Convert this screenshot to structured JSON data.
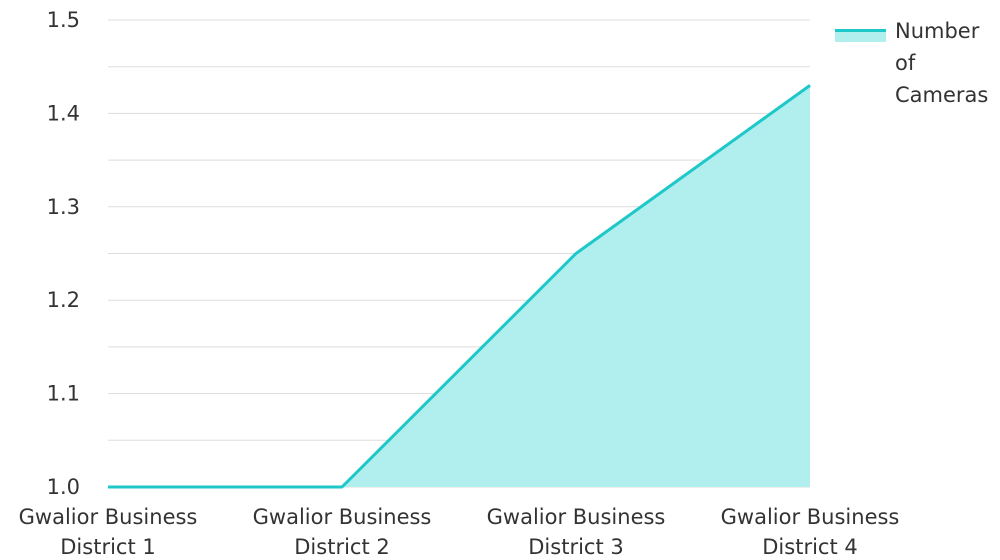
{
  "chart_data": {
    "type": "area",
    "categories": [
      [
        "Gwalior Business",
        "District 1"
      ],
      [
        "Gwalior Business",
        "District 2"
      ],
      [
        "Gwalior Business",
        "District 3"
      ],
      [
        "Gwalior Business",
        "District 4"
      ]
    ],
    "series": [
      {
        "name": "Number of Cameras",
        "values": [
          1.0,
          1.0,
          1.25,
          1.43
        ],
        "color": "#1ec8c8",
        "fill": "#b1efef"
      }
    ],
    "ylim": [
      1.0,
      1.5
    ],
    "yticks": [
      "1.0",
      "1.1",
      "1.2",
      "1.3",
      "1.4",
      "1.5"
    ],
    "grid": true,
    "legend": {
      "position": "top-right",
      "lines": [
        "Number",
        "of",
        "Cameras"
      ]
    }
  }
}
